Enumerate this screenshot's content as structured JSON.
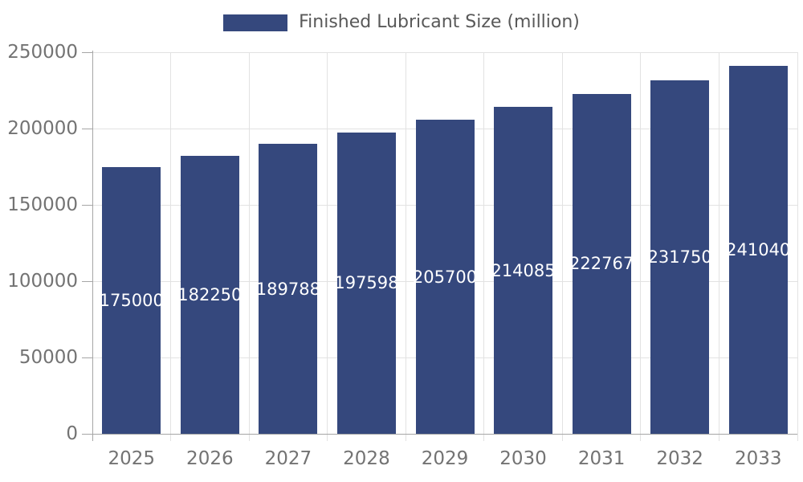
{
  "chart_data": {
    "type": "bar",
    "title": "",
    "legend_label": "Finished Lubricant Size (million)",
    "legend_position": "top-center",
    "categories": [
      "2025",
      "2026",
      "2027",
      "2028",
      "2029",
      "2030",
      "2031",
      "2032",
      "2033"
    ],
    "series": [
      {
        "name": "Finished Lubricant Size (million)",
        "values": [
          175000,
          182250,
          189788,
          197598,
          205700,
          214085,
          222767,
          231750,
          241040
        ]
      }
    ],
    "bar_value_labels": [
      "175000",
      "182250",
      "189788",
      "197598",
      "205700",
      "214085",
      "222767",
      "231750",
      "241040"
    ],
    "xlabel": "",
    "ylabel": "",
    "ylim": [
      0,
      250000
    ],
    "ytick_step": 50000,
    "ytick_labels": [
      "0",
      "50000",
      "100000",
      "150000",
      "200000",
      "250000"
    ],
    "grid": "on",
    "colors": {
      "bar": "#35487d",
      "grid": "#e2e2e2",
      "axis": "#a6a6a6",
      "tick_text": "#737373",
      "legend_text": "#595959",
      "bar_label_text": "#ffffff",
      "background": "#ffffff"
    }
  }
}
